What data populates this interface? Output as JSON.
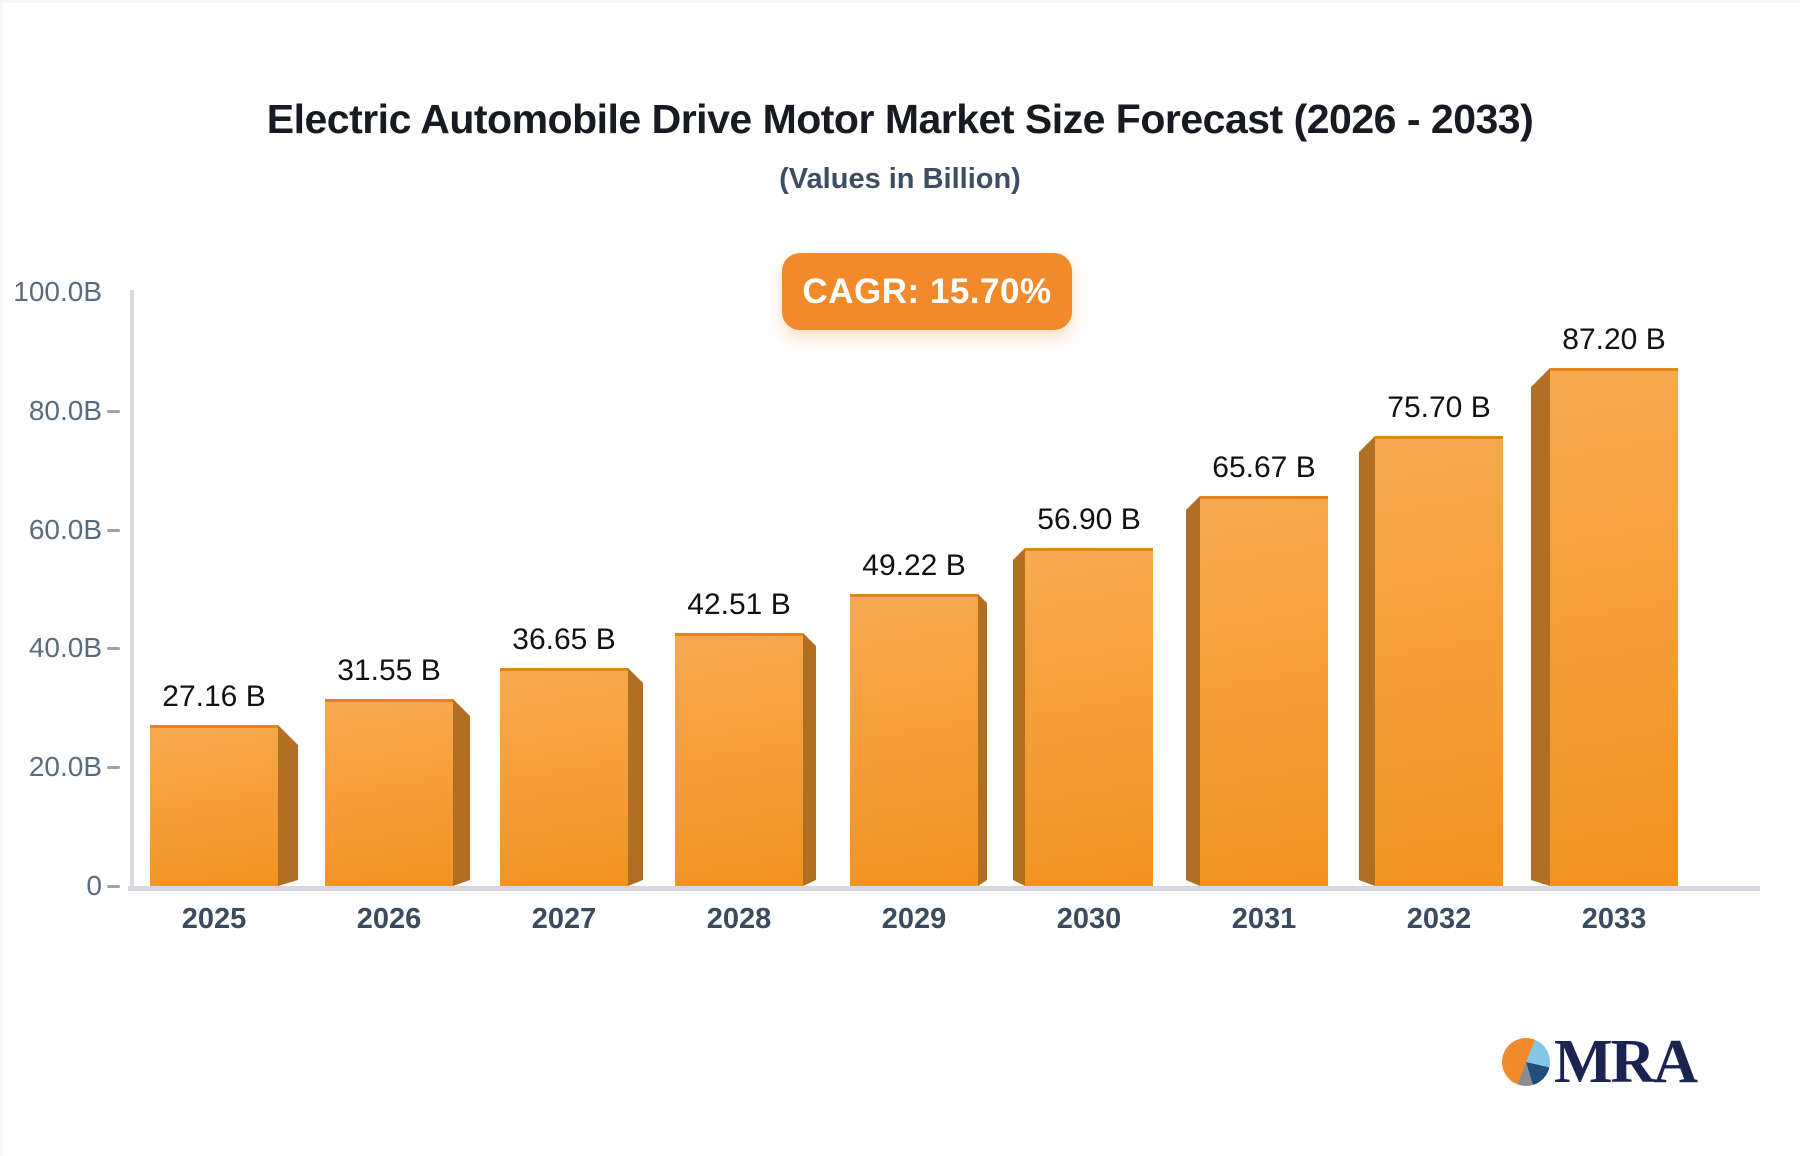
{
  "header": {
    "title": "Electric Automobile Drive Motor Market Size Forecast (2026 - 2033)",
    "subtitle": "(Values in Billion)"
  },
  "badge": {
    "label": "CAGR: 15.70%",
    "background": "#f18a2b",
    "text_color": "#ffffff"
  },
  "chart_data": {
    "type": "bar",
    "title": "Electric Automobile Drive Motor Market Size Forecast (2026 - 2033)",
    "subtitle": "(Values in Billion)",
    "annotation": "CAGR: 15.70%",
    "categories": [
      "2025",
      "2026",
      "2027",
      "2028",
      "2029",
      "2030",
      "2031",
      "2032",
      "2033"
    ],
    "values": [
      27.16,
      31.55,
      36.65,
      42.51,
      49.22,
      56.9,
      65.67,
      75.7,
      87.2
    ],
    "value_labels": [
      "27.16 B",
      "31.55 B",
      "36.65 B",
      "42.51 B",
      "49.22 B",
      "56.90 B",
      "65.67 B",
      "75.70 B",
      "87.20 B"
    ],
    "y_tick_labels": [
      "100.0B",
      "80.0B",
      "60.0B",
      "40.0B",
      "20.0B",
      "0"
    ],
    "y_tick_values": [
      100,
      80,
      60,
      40,
      20,
      0
    ],
    "ylim": [
      0,
      100
    ],
    "xlabel": "",
    "ylabel": "",
    "grid": false,
    "legend": false,
    "bar_color_top": "#f8a94f",
    "bar_color_bottom": "#f29221",
    "bar_top_edge_color": "#e0861d",
    "bar_side_color": "#b06f22",
    "axis_color": "#d6d8de",
    "tick_label_color": "#5b6b7e",
    "category_label_color": "#3c4a5e",
    "value_label_color": "#101114"
  },
  "logo": {
    "text": "MRA",
    "text_color": "#1b2350",
    "pie_colors": [
      "#f08a2b",
      "#85c6e8",
      "#1f4e79",
      "#8c8c92"
    ]
  }
}
